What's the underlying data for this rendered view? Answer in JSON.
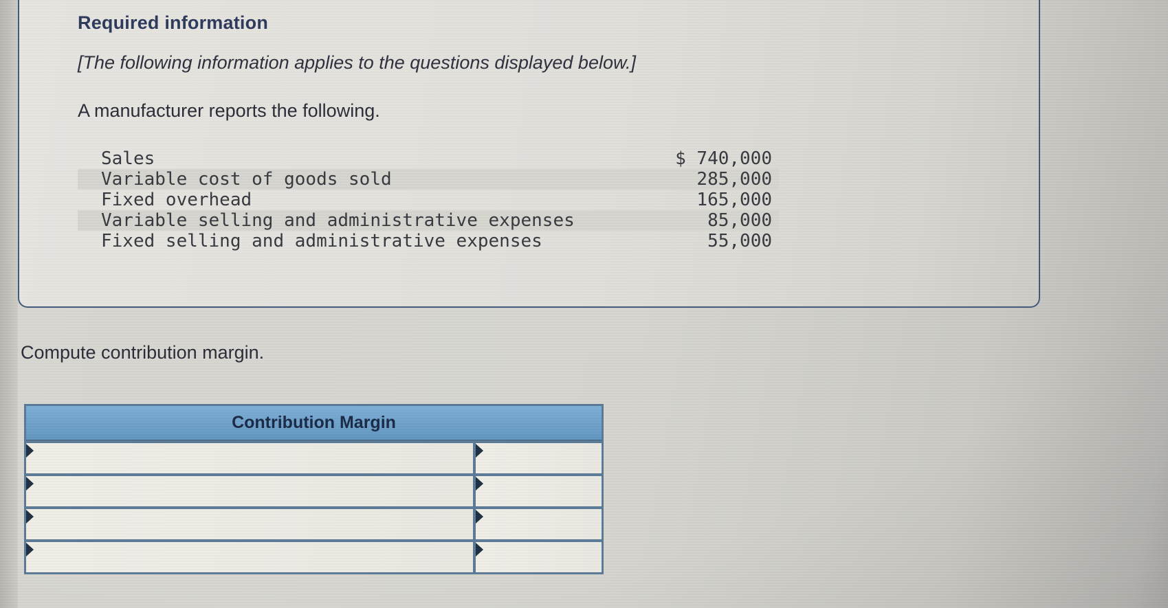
{
  "card": {
    "heading": "Required information",
    "note": "[The following information applies to the questions displayed below.]",
    "intro": "A manufacturer reports the following.",
    "financials": {
      "rows": [
        {
          "label": "Sales",
          "value": "$ 740,000",
          "shaded": false
        },
        {
          "label": "Variable cost of goods sold",
          "value": "285,000",
          "shaded": true
        },
        {
          "label": "Fixed overhead",
          "value": "165,000",
          "shaded": false
        },
        {
          "label": "Variable selling and administrative expenses",
          "value": "85,000",
          "shaded": true
        },
        {
          "label": "Fixed selling and administrative expenses",
          "value": "55,000",
          "shaded": false
        }
      ]
    }
  },
  "task": {
    "prompt": "Compute contribution margin."
  },
  "worksheet": {
    "title": "Contribution Margin",
    "rows": [
      {
        "label_cell": "",
        "amount_cell": ""
      },
      {
        "label_cell": "",
        "amount_cell": ""
      },
      {
        "label_cell": "",
        "amount_cell": ""
      },
      {
        "label_cell": "",
        "amount_cell": ""
      }
    ]
  },
  "colors": {
    "header_blue": "#6FA4CB",
    "table_border": "#5A7A96",
    "heading_navy": "#2D3A5C",
    "marker_navy": "#1D3044",
    "stripe": "#D6D5CF"
  }
}
